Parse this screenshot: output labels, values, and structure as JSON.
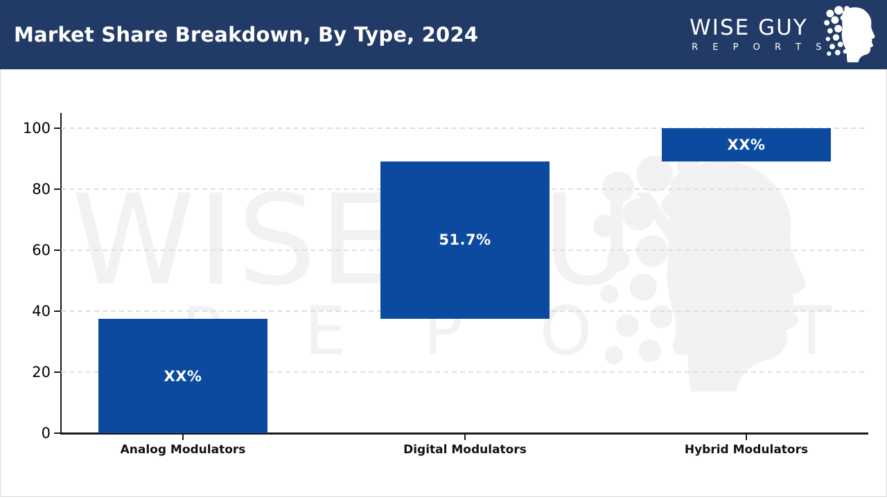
{
  "header": {
    "title": "Market Share Breakdown, By Type, 2024",
    "brand": {
      "wordmark": "WISE GUY",
      "subtext": "R E P O R T S"
    }
  },
  "watermark": {
    "wordmark": "WISE GUY",
    "subtext": "R E P O R T S"
  },
  "chart_data": {
    "type": "bar",
    "variant": "waterfall-stacked-percent",
    "title": "Market Share Breakdown, By Type, 2024",
    "categories": [
      "Analog Modulators",
      "Digital Modulators",
      "Hybrid Modulators"
    ],
    "bars": [
      {
        "category": "Analog Modulators",
        "from": 0,
        "to": 37.5,
        "label": "XX%"
      },
      {
        "category": "Digital Modulators",
        "from": 37.5,
        "to": 89.2,
        "label": "51.7%"
      },
      {
        "category": "Hybrid Modulators",
        "from": 89.2,
        "to": 100,
        "label": "XX%"
      }
    ],
    "xlabel": "",
    "ylabel": "",
    "ylim": [
      0,
      105
    ],
    "yticks": [
      0,
      20,
      40,
      60,
      80,
      100
    ],
    "grid": {
      "horizontal": true,
      "style": "dashed",
      "vertical": false
    },
    "legend": "none",
    "colors": {
      "bar": "#0b4a9e",
      "bar_label": "#ffffff",
      "header_bg": "#213a66",
      "grid": "#dedede",
      "axis": "#1a1a1a",
      "tick_label": "#000000",
      "watermark": "#f2f2f5"
    }
  }
}
